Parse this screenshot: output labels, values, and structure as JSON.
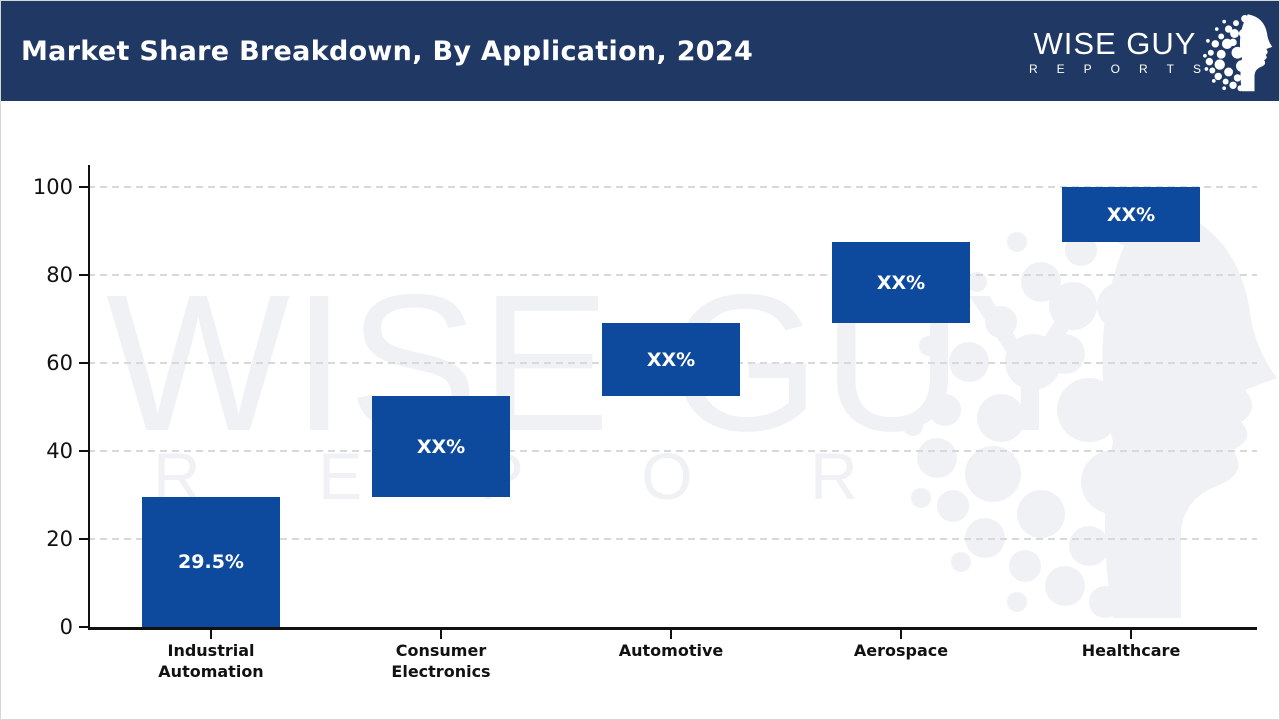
{
  "header": {
    "title": "Market Share Breakdown, By Application, 2024",
    "logo": {
      "brand_top": "WISE GUY",
      "brand_bottom": "REPORTS"
    }
  },
  "watermark": {
    "line1": "WISE GUY",
    "line2": "REPORTS"
  },
  "colors": {
    "header_bg": "#203864",
    "bar": "#0d4a9e",
    "bar_label_text": "#ffffff",
    "gridline": "#d9d9d9",
    "axis": "#111111",
    "watermark": "#f0f1f4"
  },
  "chart_data": {
    "type": "bar",
    "subtype": "waterfall",
    "title": "Market Share Breakdown, By Application, 2024",
    "xlabel": "",
    "ylabel": "",
    "ylim": [
      0,
      105
    ],
    "yticks": [
      0,
      20,
      40,
      60,
      80,
      100
    ],
    "grid": "horizontal-dashed",
    "legend": "none",
    "categories": [
      "Industrial Automation",
      "Consumer Electronics",
      "Automotive",
      "Aerospace",
      "Healthcare"
    ],
    "segments": [
      {
        "category": "Industrial Automation",
        "start": 0,
        "end": 29.5,
        "value": 29.5,
        "display_label": "29.5%"
      },
      {
        "category": "Consumer Electronics",
        "start": 29.5,
        "end": 52.5,
        "value": 23,
        "display_label": "XX%"
      },
      {
        "category": "Automotive",
        "start": 52.5,
        "end": 69,
        "value": 16.5,
        "display_label": "XX%"
      },
      {
        "category": "Aerospace",
        "start": 69,
        "end": 87.5,
        "value": 18.5,
        "display_label": "XX%"
      },
      {
        "category": "Healthcare",
        "start": 87.5,
        "end": 100,
        "value": 12.5,
        "display_label": "XX%"
      }
    ]
  }
}
